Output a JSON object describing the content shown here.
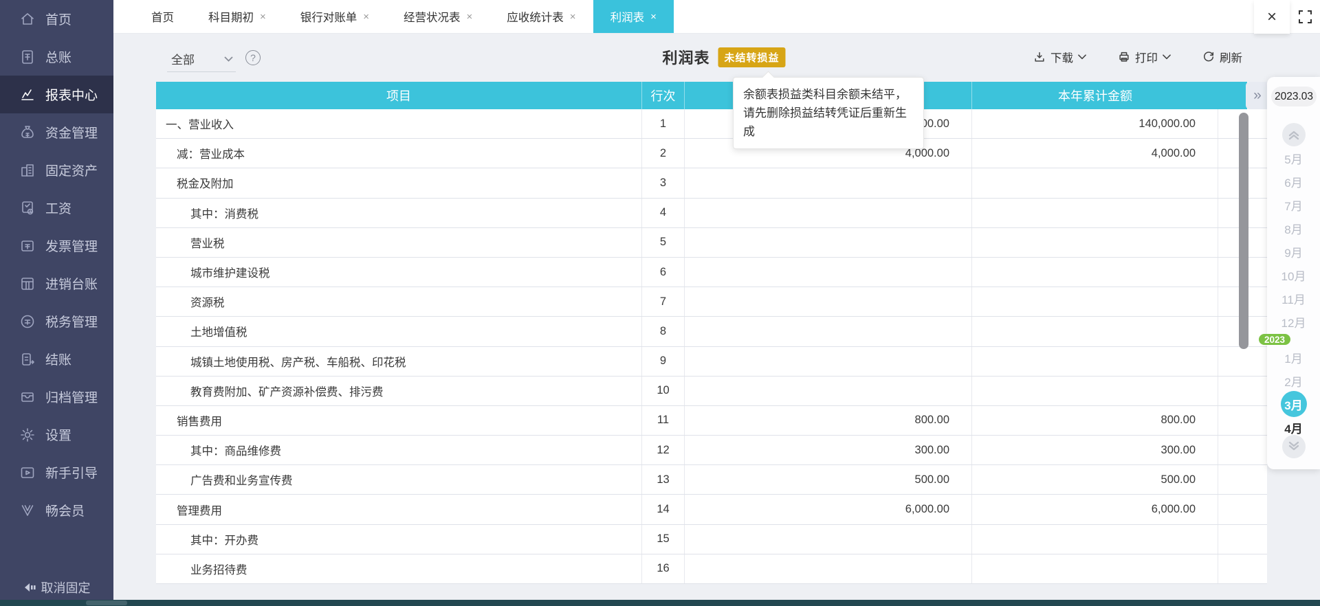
{
  "sidebar": {
    "items": [
      {
        "label": "首页",
        "icon": "home-icon",
        "active": false
      },
      {
        "label": "总账",
        "icon": "ledger-icon",
        "active": false
      },
      {
        "label": "报表中心",
        "icon": "report-chart-icon",
        "active": true
      },
      {
        "label": "资金管理",
        "icon": "money-bag-icon",
        "active": false
      },
      {
        "label": "固定资产",
        "icon": "building-icon",
        "active": false
      },
      {
        "label": "工资",
        "icon": "payroll-icon",
        "active": false
      },
      {
        "label": "发票管理",
        "icon": "invoice-icon",
        "active": false
      },
      {
        "label": "进销台账",
        "icon": "io-ledger-icon",
        "active": false
      },
      {
        "label": "税务管理",
        "icon": "tax-icon",
        "active": false
      },
      {
        "label": "结账",
        "icon": "closing-icon",
        "active": false
      },
      {
        "label": "归档管理",
        "icon": "archive-icon",
        "active": false
      },
      {
        "label": "设置",
        "icon": "gear-icon",
        "active": false
      },
      {
        "label": "新手引导",
        "icon": "guide-video-icon",
        "active": false
      },
      {
        "label": "畅会员",
        "icon": "vip-icon",
        "active": false
      }
    ],
    "unpin_label": "取消固定"
  },
  "tabbar": {
    "tabs": [
      {
        "label": "首页",
        "closable": false,
        "active": false
      },
      {
        "label": "科目期初",
        "closable": true,
        "active": false
      },
      {
        "label": "银行对账单",
        "closable": true,
        "active": false
      },
      {
        "label": "经营状况表",
        "closable": true,
        "active": false
      },
      {
        "label": "应收统计表",
        "closable": true,
        "active": false
      },
      {
        "label": "利润表",
        "closable": true,
        "active": true
      }
    ]
  },
  "toolbar": {
    "filter_label": "全部",
    "title": "利润表",
    "badge": "未结转损益",
    "download_label": "下载",
    "print_label": "打印",
    "refresh_label": "刷新"
  },
  "tooltip": {
    "text": "余额表损益类科目余额未结平，请先删除损益结转凭证后重新生成"
  },
  "table": {
    "headers": {
      "item": "项目",
      "line_no": "行次",
      "current": "",
      "ytd": "本年累计金额"
    },
    "rows": [
      {
        "item": "一、营业收入",
        "indent": 0,
        "line": "1",
        "current": "140,000.00",
        "ytd": "140,000.00"
      },
      {
        "item": "减：营业成本",
        "indent": 1,
        "line": "2",
        "current": "4,000.00",
        "ytd": "4,000.00"
      },
      {
        "item": "税金及附加",
        "indent": 1,
        "line": "3",
        "current": "",
        "ytd": ""
      },
      {
        "item": "其中：消费税",
        "indent": 2,
        "line": "4",
        "current": "",
        "ytd": ""
      },
      {
        "item": "营业税",
        "indent": 2,
        "line": "5",
        "current": "",
        "ytd": ""
      },
      {
        "item": "城市维护建设税",
        "indent": 2,
        "line": "6",
        "current": "",
        "ytd": ""
      },
      {
        "item": "资源税",
        "indent": 2,
        "line": "7",
        "current": "",
        "ytd": ""
      },
      {
        "item": "土地增值税",
        "indent": 2,
        "line": "8",
        "current": "",
        "ytd": ""
      },
      {
        "item": "城镇土地使用税、房产税、车船税、印花税",
        "indent": 2,
        "line": "9",
        "current": "",
        "ytd": ""
      },
      {
        "item": "教育费附加、矿产资源补偿费、排污费",
        "indent": 2,
        "line": "10",
        "current": "",
        "ytd": ""
      },
      {
        "item": "销售费用",
        "indent": 1,
        "line": "11",
        "current": "800.00",
        "ytd": "800.00"
      },
      {
        "item": "其中：商品维修费",
        "indent": 2,
        "line": "12",
        "current": "300.00",
        "ytd": "300.00"
      },
      {
        "item": "广告费和业务宣传费",
        "indent": 2,
        "line": "13",
        "current": "500.00",
        "ytd": "500.00"
      },
      {
        "item": "管理费用",
        "indent": 1,
        "line": "14",
        "current": "6,000.00",
        "ytd": "6,000.00"
      },
      {
        "item": "其中：开办费",
        "indent": 2,
        "line": "15",
        "current": "",
        "ytd": ""
      },
      {
        "item": "业务招待费",
        "indent": 2,
        "line": "16",
        "current": "",
        "ytd": ""
      }
    ]
  },
  "month_panel": {
    "period": "2023.03",
    "entries": [
      {
        "type": "month",
        "label": "5月",
        "state": "dim"
      },
      {
        "type": "month",
        "label": "6月",
        "state": "dim"
      },
      {
        "type": "month",
        "label": "7月",
        "state": "dim"
      },
      {
        "type": "month",
        "label": "8月",
        "state": "dim"
      },
      {
        "type": "month",
        "label": "9月",
        "state": "dim"
      },
      {
        "type": "month",
        "label": "10月",
        "state": "dim"
      },
      {
        "type": "month",
        "label": "11月",
        "state": "dim"
      },
      {
        "type": "month",
        "label": "12月",
        "state": "dim"
      },
      {
        "type": "year",
        "label": "2023"
      },
      {
        "type": "month",
        "label": "1月",
        "state": "dim"
      },
      {
        "type": "month",
        "label": "2月",
        "state": "dim"
      },
      {
        "type": "month",
        "label": "3月",
        "state": "active"
      },
      {
        "type": "month",
        "label": "4月",
        "state": "normal"
      }
    ]
  },
  "colors": {
    "accent_cyan": "#3cc3db",
    "sidebar_bg": "#3f4564",
    "badge_gold": "#d7a516",
    "year_green": "#7cc244"
  }
}
